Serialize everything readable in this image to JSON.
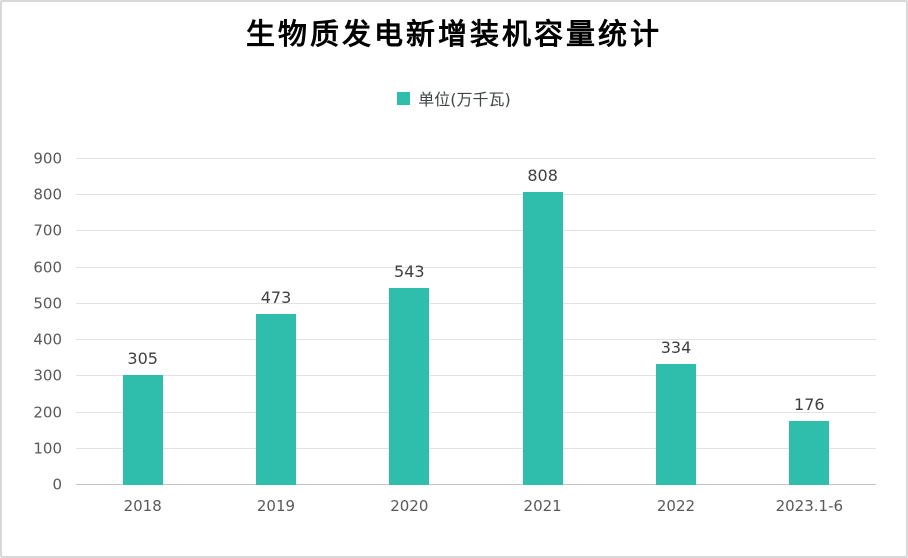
{
  "chart_data": {
    "type": "bar",
    "title": "生物质发电新增装机容量统计",
    "legend": {
      "label": "单位(万千瓦)",
      "position": "top-center",
      "swatch": "square"
    },
    "categories": [
      "2018",
      "2019",
      "2020",
      "2021",
      "2022",
      "2023.1-6"
    ],
    "values": [
      305,
      473,
      543,
      808,
      334,
      176
    ],
    "series_name": "单位(万千瓦)",
    "xlabel": "",
    "ylabel": "",
    "ylim": [
      0,
      900
    ],
    "yticks": [
      0,
      100,
      200,
      300,
      400,
      500,
      600,
      700,
      800,
      900
    ],
    "grid": true,
    "data_labels_shown": true
  },
  "colors": {
    "bar": "#2FBEAB",
    "gridline": "#E2E2E2",
    "axis_line": "#C3C3C3",
    "tick_label": "#595959",
    "data_label": "#3F3F3F",
    "title": "#000000",
    "legend_text": "#3F4645",
    "card_border": "#D8D8D8",
    "background": "#FFFFFF"
  }
}
